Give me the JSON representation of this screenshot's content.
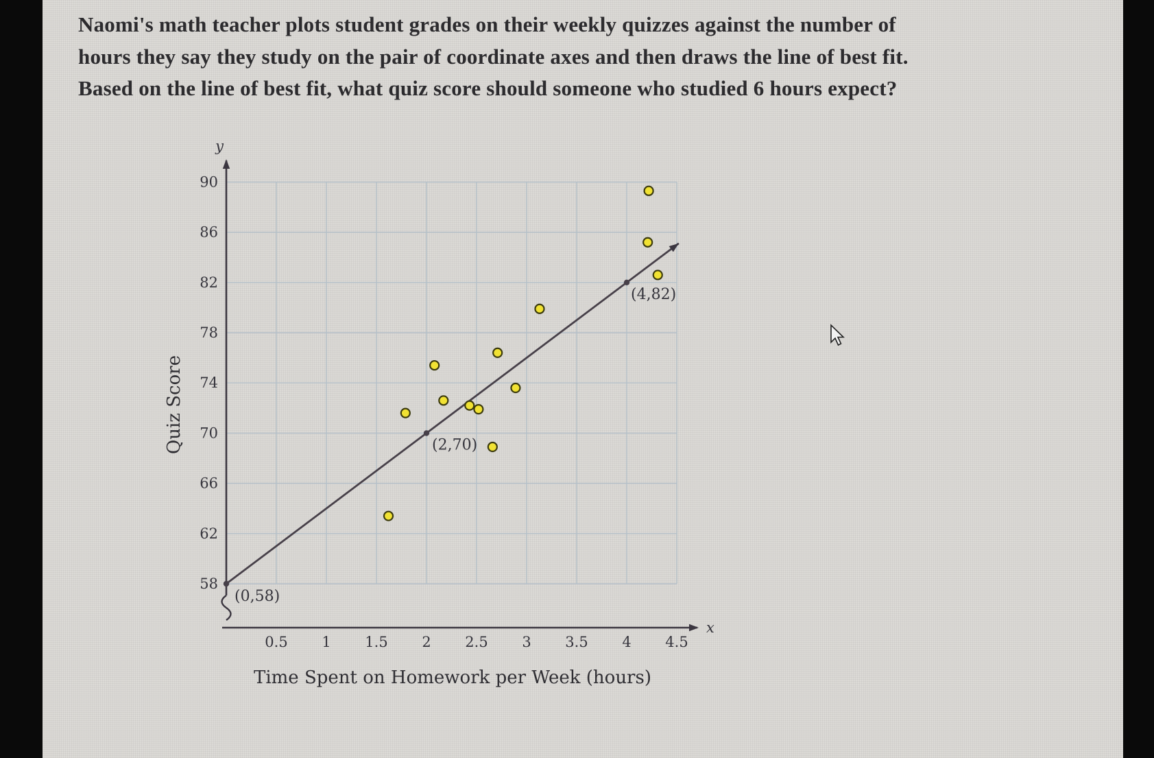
{
  "window": {
    "background": "#d8d6d2",
    "bezel_color": "#0a0a0a"
  },
  "question": {
    "line1": "Naomi's math teacher plots student grades on their weekly quizzes against the number of",
    "line2": "hours they say they study on the pair of coordinate axes and then draws the line of best fit.",
    "line3": "Based on the line of best fit, what quiz score should someone who studied 6 hours expect?"
  },
  "chart_data": {
    "type": "scatter",
    "title": "",
    "xlabel": "Time Spent on Homework per Week (hours)",
    "ylabel": "Quiz Score",
    "x_axis_letter": "x",
    "y_axis_letter": "y",
    "x_ticks": [
      0.5,
      1,
      1.5,
      2,
      2.5,
      3,
      3.5,
      4,
      4.5
    ],
    "x_tick_labels": [
      "0.5",
      "1",
      "1.5",
      "2",
      "2.5",
      "3",
      "3.5",
      "4",
      "4.5"
    ],
    "y_ticks": [
      58,
      62,
      66,
      70,
      74,
      78,
      82,
      86,
      90
    ],
    "xlim": [
      0,
      4.7
    ],
    "ylim": [
      56,
      92
    ],
    "grid": true,
    "points": [
      [
        4.22,
        89.3
      ],
      [
        4.21,
        85.2
      ],
      [
        4.31,
        82.6
      ],
      [
        3.13,
        79.9
      ],
      [
        2.71,
        76.4
      ],
      [
        2.08,
        75.4
      ],
      [
        2.89,
        73.6
      ],
      [
        2.17,
        72.6
      ],
      [
        2.43,
        72.2
      ],
      [
        2.52,
        71.9
      ],
      [
        1.79,
        71.6
      ],
      [
        2.66,
        68.9
      ],
      [
        1.62,
        63.4
      ]
    ],
    "best_fit": {
      "slope": 6,
      "intercept": 58,
      "end_x": 4.52,
      "marked_points": [
        [
          0,
          58
        ],
        [
          2,
          70
        ],
        [
          4,
          82
        ]
      ],
      "point_labels": [
        "(0,58)",
        "(2,70)",
        "(4,82)"
      ]
    },
    "colors": {
      "grid": "#b5c0c9",
      "axis": "#3b3640",
      "line": "#474049",
      "point_fill": "#f1e233",
      "point_stroke": "#3c3b0e",
      "text": "#35343c",
      "title_text": "#2f2e33"
    }
  }
}
